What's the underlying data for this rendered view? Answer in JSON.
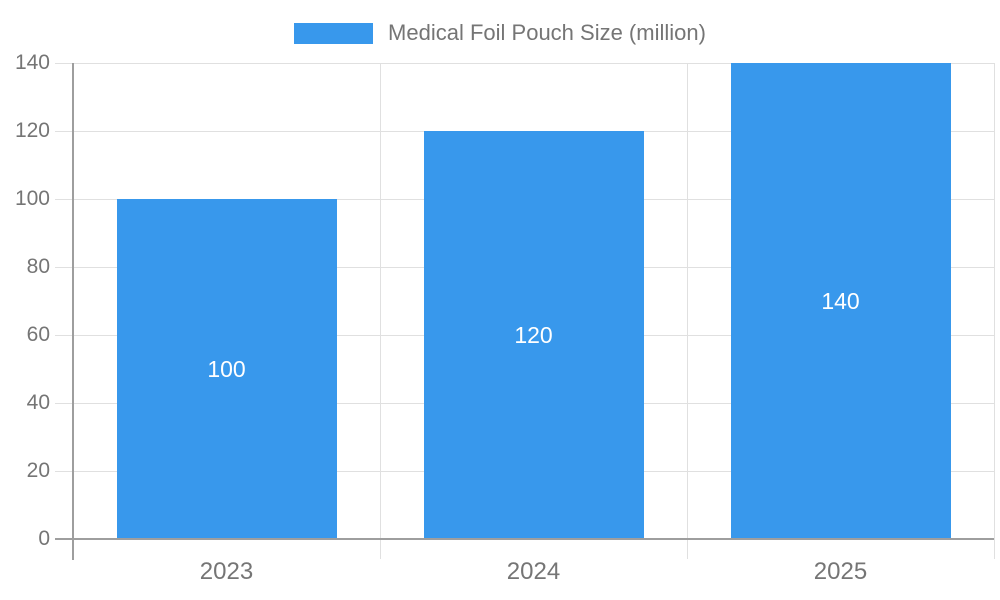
{
  "chart_data": {
    "type": "bar",
    "title": "Medical Foil Pouch Size (million)",
    "series_name": "Medical Foil Pouch Size (million)",
    "categories": [
      "2023",
      "2024",
      "2025"
    ],
    "values": [
      100,
      120,
      140
    ],
    "bar_labels": [
      "100",
      "120",
      "140"
    ],
    "y_ticks": [
      0,
      20,
      40,
      60,
      80,
      100,
      120,
      140
    ],
    "y_tick_labels": [
      "0",
      "20",
      "40",
      "60",
      "80",
      "100",
      "120",
      "140"
    ],
    "ylim": [
      0,
      140
    ],
    "xlabel": "",
    "ylabel": "",
    "grid": true,
    "legend_position": "top-center",
    "colors": {
      "bar": "#3898ec",
      "grid": "#e0e0e0",
      "axis": "#9e9e9e",
      "text": "#757575",
      "bar_label": "#ffffff",
      "background": "#ffffff"
    }
  }
}
